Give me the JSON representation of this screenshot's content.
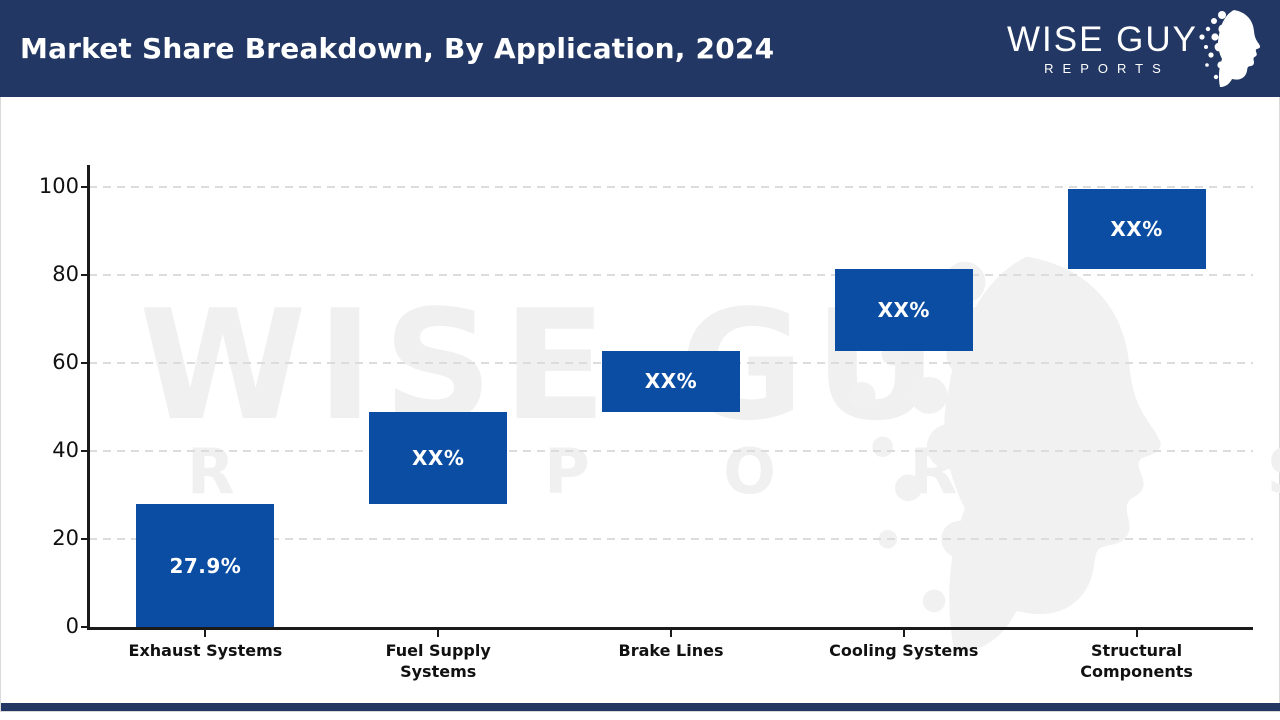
{
  "header": {
    "title": "Market Share Breakdown, By Application, 2024",
    "logo": {
      "line1": "WISE GUY",
      "line2": "REPORTS"
    }
  },
  "watermark": {
    "line1": "WISE GUY",
    "line2": "R E P O R T S"
  },
  "chart_data": {
    "type": "bar",
    "subtype": "waterfall",
    "title": "Market Share Breakdown, By Application, 2024",
    "categories": [
      "Exhaust Systems",
      "Fuel Supply\nSystems",
      "Brake Lines",
      "Cooling Systems",
      "Structural\nComponents"
    ],
    "series": [
      {
        "name": "Market Share (%)",
        "segments": [
          {
            "category": "Exhaust Systems",
            "start": 0,
            "end": 27.9,
            "label": "27.9%"
          },
          {
            "category": "Fuel Supply Systems",
            "start": 27.9,
            "end": 48.8,
            "label": "XX%"
          },
          {
            "category": "Brake Lines",
            "start": 48.8,
            "end": 62.8,
            "label": "XX%"
          },
          {
            "category": "Cooling Systems",
            "start": 62.8,
            "end": 81.3,
            "label": "XX%"
          },
          {
            "category": "Structural Components",
            "start": 81.3,
            "end": 99.6,
            "label": "XX%"
          }
        ]
      }
    ],
    "yticks": [
      0,
      20,
      40,
      60,
      80,
      100
    ],
    "ylim": [
      0,
      105
    ],
    "xlabel": "",
    "ylabel": "",
    "legend": "none",
    "grid": "horizontal-dashed",
    "colors": {
      "bar": "#0B4DA2",
      "grid": "#DCDCDC",
      "axis": "#1A1A1A",
      "bar_label": "#FFFFFF",
      "header_bg": "#223763",
      "watermark": "#F0F0F0"
    }
  }
}
